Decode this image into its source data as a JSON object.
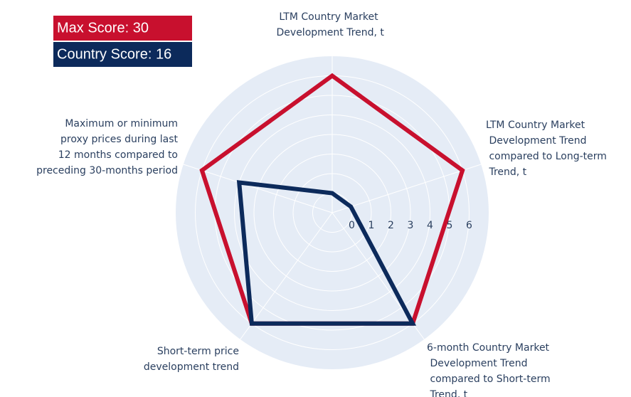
{
  "chart_data": {
    "type": "radar",
    "categories": [
      "LTM Country Market\n Development Trend, t",
      "LTM Country Market\n Development Trend\n compared to Long-term\n Trend, t",
      "6-month Country Market\n Development Trend\n compared to Short-term\n Trend, t",
      "Short-term price\n development trend",
      "Maximum or minimum\n proxy prices during last\n 12 months compared to\n preceding 30-months period"
    ],
    "series": [
      {
        "name": "Max Score: 30",
        "color": "#c8102e",
        "values": [
          6,
          6,
          6,
          6,
          6
        ]
      },
      {
        "name": "Country Score: 16",
        "color": "#0c2a5b",
        "values": [
          0,
          0,
          6,
          6,
          4
        ]
      }
    ],
    "rlim": [
      -1,
      7
    ],
    "rticks": [
      0,
      1,
      2,
      3,
      4,
      5,
      6
    ],
    "grid": true,
    "direction": "clockwise"
  }
}
